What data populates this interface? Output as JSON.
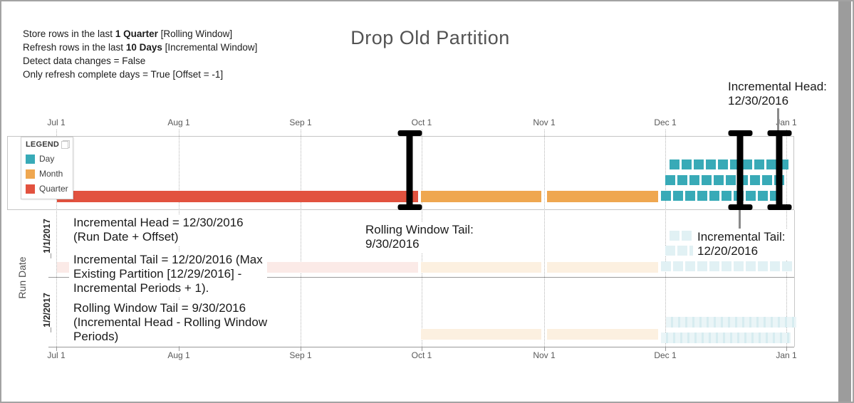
{
  "title": "Drop Old Partition",
  "info": {
    "line1": {
      "prefix": "Store rows in the last ",
      "bold": "1 Quarter",
      "suffix": " [Rolling Window]"
    },
    "line2": {
      "prefix": "Refresh rows in the last ",
      "bold": "10 Days",
      "suffix": " [Incremental Window]"
    },
    "line3": "Detect data changes = False",
    "line4": "Only refresh complete days = True [Offset = -1]"
  },
  "legend": {
    "title": "LEGEND",
    "items": [
      {
        "label": "Day",
        "color": "#38AAB7"
      },
      {
        "label": "Month",
        "color": "#EFA750"
      },
      {
        "label": "Quarter",
        "color": "#E2523F"
      }
    ]
  },
  "axis": {
    "months": [
      "Jul 1",
      "Aug 1",
      "Sep 1",
      "Oct 1",
      "Nov 1",
      "Dec 1",
      "Jan 1"
    ],
    "y_title": "Run Date",
    "run_dates": [
      "_1/1/2017",
      "_1/2/2017"
    ]
  },
  "annotations": {
    "incremental_head_pointer": {
      "lines": [
        "Incremental Head:",
        "12/30/2016"
      ]
    },
    "head_calc": {
      "lines": [
        "Incremental Head = 12/30/2016",
        "(Run Date + Offset)"
      ]
    },
    "tail_calc": {
      "lines": [
        "Incremental Tail = 12/20/2016 (Max",
        "Existing Partition [12/29/2016] -",
        "Incremental Periods + 1)."
      ]
    },
    "rolling_calc": {
      "lines": [
        "Rolling Window Tail = 9/30/2016",
        "(Incremental Head - Rolling Window",
        "Periods)"
      ]
    },
    "rolling_tail_pointer": {
      "lines": [
        "Rolling Window Tail:",
        "9/30/2016"
      ]
    },
    "incremental_tail_pointer": {
      "lines": [
        "Incremental Tail:",
        "12/20/2016"
      ]
    }
  },
  "chart_data": {
    "type": "gantt-timeline",
    "title": "Drop Old Partition",
    "x_axis": {
      "tick_labels": [
        "Jul 1",
        "Aug 1",
        "Sep 1",
        "Oct 1",
        "Nov 1",
        "Dec 1",
        "Jan 1"
      ],
      "range": [
        "7/1/2016",
        "1/1/2017"
      ],
      "grid": "dotted"
    },
    "y_axis": {
      "label": "Run Date",
      "categories": [
        "1/1/2017",
        "1/2/2017"
      ]
    },
    "legend_entries": [
      "Day",
      "Month",
      "Quarter"
    ],
    "rows": [
      {
        "run_date": "1/1/2017",
        "state": "current (solid)",
        "partitions": [
          {
            "type": "Quarter",
            "start": "7/1/2016",
            "end": "9/30/2016"
          },
          {
            "type": "Month",
            "start": "10/1/2016",
            "end": "10/31/2016"
          },
          {
            "type": "Month",
            "start": "11/1/2016",
            "end": "11/30/2016"
          },
          {
            "type": "Day",
            "start": "12/1/2016",
            "end": "12/30/2016",
            "count": 30
          }
        ]
      },
      {
        "run_date": "1/1/2017",
        "state": "faded",
        "partitions": [
          {
            "type": "Quarter",
            "start": "7/1/2016",
            "end": "9/30/2016"
          },
          {
            "type": "Month",
            "start": "10/1/2016",
            "end": "10/31/2016"
          },
          {
            "type": "Month",
            "start": "11/1/2016",
            "end": "11/30/2016"
          },
          {
            "type": "Day",
            "start": "12/1/2016",
            "end": "12/31/2016",
            "count": 31
          }
        ]
      },
      {
        "run_date": "1/2/2017",
        "state": "faded, quarter partition dropped",
        "partitions": [
          {
            "type": "Month",
            "start": "10/1/2016",
            "end": "10/31/2016"
          },
          {
            "type": "Month",
            "start": "11/1/2016",
            "end": "11/30/2016"
          },
          {
            "type": "Day",
            "start": "12/2/2016",
            "end": "12/31/2016",
            "count": 30
          }
        ]
      }
    ],
    "markers": [
      {
        "name": "Rolling Window Tail",
        "date": "9/30/2016"
      },
      {
        "name": "Incremental Tail",
        "date": "12/20/2016"
      },
      {
        "name": "Incremental Head",
        "date": "12/30/2016"
      }
    ]
  }
}
